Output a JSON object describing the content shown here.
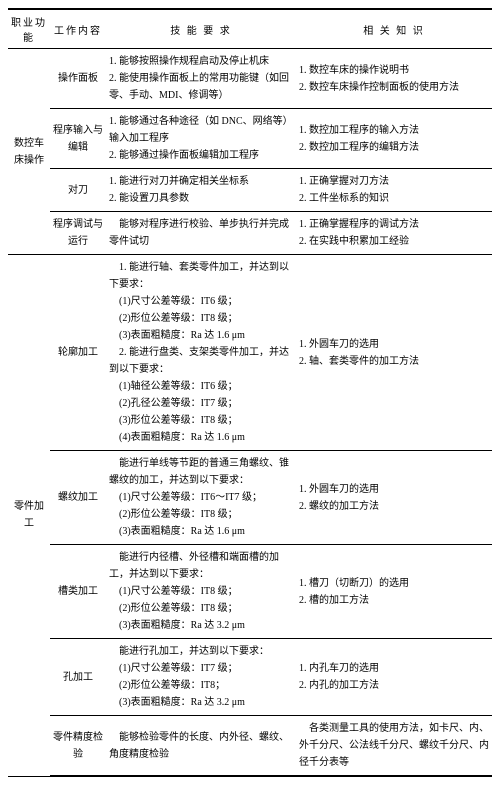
{
  "headers": {
    "func": "职业功能",
    "work": "工作内容",
    "skill": "技 能 要 求",
    "know": "相 关 知 识"
  },
  "funcs": {
    "lathe": "数控车床操作",
    "part": "零件加工"
  },
  "rows": {
    "panel": {
      "work": "操作面板",
      "skill": "1. 能够按照操作规程启动及停止机床\n2. 能使用操作面板上的常用功能键（如回零、手动、MDI、修调等）",
      "know": "1. 数控车床的操作说明书\n2. 数控车床操作控制面板的使用方法"
    },
    "prog": {
      "work": "程序输入与编辑",
      "skill": "1. 能够通过各种途径（如 DNC、网络等）输入加工程序\n2. 能够通过操作面板编辑加工程序",
      "know": "1. 数控加工程序的输入方法\n2. 数控加工程序的编辑方法"
    },
    "tool": {
      "work": "对刀",
      "skill": "1. 能进行对刀并确定相关坐标系\n2. 能设置刀具参数",
      "know": "1. 正确掌握对刀方法\n2. 工件坐标系的知识"
    },
    "debug": {
      "work": "程序调试与运行",
      "skill": "　能够对程序进行校验、单步执行并完成零件试切",
      "know": "1. 正确掌握程序的调试方法\n2. 在实践中积累加工经验"
    },
    "contour": {
      "work": "轮廓加工",
      "skill": "　1. 能进行轴、套类零件加工，并达到以下要求：\n　(1)尺寸公差等级：IT6 级；\n　(2)形位公差等级：IT8 级；\n　(3)表面粗糙度：Ra 达 1.6 μm\n　2. 能进行盘类、支架类零件加工，并达到以下要求：\n　(1)轴径公差等级：IT6 级；\n　(2)孔径公差等级：IT7 级；\n　(3)形位公差等级：IT8 级；\n　(4)表面粗糙度：Ra 达 1.6 μm",
      "know": "1. 外圆车刀的选用\n2. 轴、套类零件的加工方法"
    },
    "thread": {
      "work": "螺纹加工",
      "skill": "　能进行单线等节距的普通三角螺纹、锥螺纹的加工，并达到以下要求：\n　(1)尺寸公差等级：IT6～IT7 级；\n　(2)形位公差等级：IT8 级；\n　(3)表面粗糙度：Ra 达 1.6 μm",
      "know": "1. 外圆车刀的选用\n2. 螺纹的加工方法"
    },
    "slot": {
      "work": "槽类加工",
      "skill": "　能进行内径槽、外径槽和端面槽的加工，并达到以下要求：\n　(1)尺寸公差等级：IT8 级；\n　(2)形位公差等级：IT8 级；\n　(3)表面粗糙度：Ra 达 3.2 μm",
      "know": "1. 槽刀（切断刀）的选用\n2. 槽的加工方法"
    },
    "hole": {
      "work": "孔加工",
      "skill": "　能进行孔加工，并达到以下要求：\n　(1)尺寸公差等级：IT7 级；\n　(2)形位公差等级：IT8；\n　(3)表面粗糙度：Ra 达 3.2 μm",
      "know": "1. 内孔车刀的选用\n2. 内孔的加工方法"
    },
    "inspect": {
      "work": "零件精度检验",
      "skill": "　能够检验零件的长度、内外径、螺纹、角度精度检验",
      "know": "　各类测量工具的使用方法，如卡尺、内、外千分尺、公法线千分尺、螺纹千分尺、内径千分表等"
    }
  }
}
